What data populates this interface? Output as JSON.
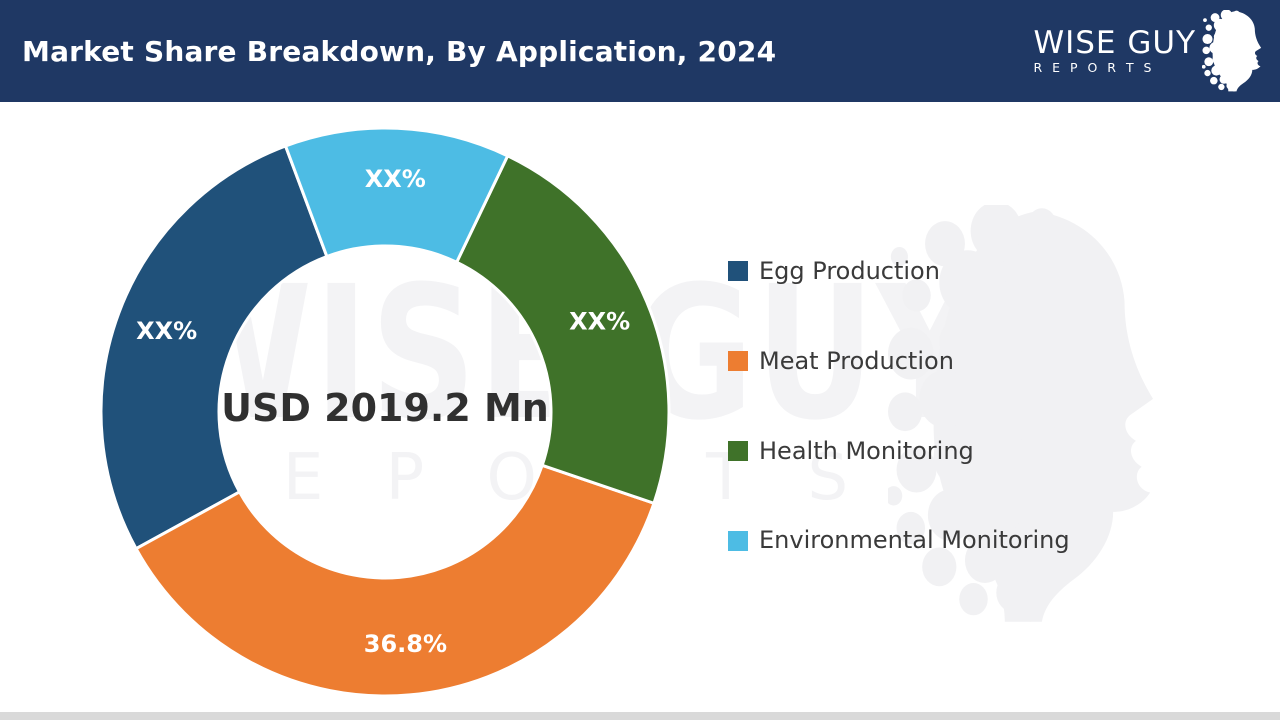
{
  "header": {
    "title": "Market Share Breakdown, By Application, 2024",
    "bg_color": "#1f3864",
    "text_color": "#ffffff",
    "logo": {
      "line1": "WISE GUY",
      "line2": "R E P O R T S"
    }
  },
  "watermark": {
    "line1": "WISE GUY",
    "line2": "R E P O R T S",
    "text_color": "#f3f3f5",
    "head_color": "#f1f1f3"
  },
  "chart_data": {
    "type": "donut",
    "title": "Market Share Breakdown, By Application, 2024",
    "center_label": "USD 2019.2 Mn",
    "legend_position": "right",
    "start_angle_deg": 110.5,
    "direction": "counterclockwise",
    "slice_label_color": "#ffffff",
    "slices": [
      {
        "name": "Egg Production",
        "label": "XX%",
        "value_pct_est": 27.3,
        "color": "#20517a"
      },
      {
        "name": "Meat Production",
        "label": "36.8%",
        "value_pct_est": 36.8,
        "color": "#ed7d31"
      },
      {
        "name": "Health Monitoring",
        "label": "XX%",
        "value_pct_est": 23.1,
        "color": "#3f7229"
      },
      {
        "name": "Environmental Monitoring",
        "label": "XX%",
        "value_pct_est": 12.8,
        "color": "#4dbce4"
      }
    ]
  },
  "footer": {
    "bar_color": "#d9d9d9"
  }
}
